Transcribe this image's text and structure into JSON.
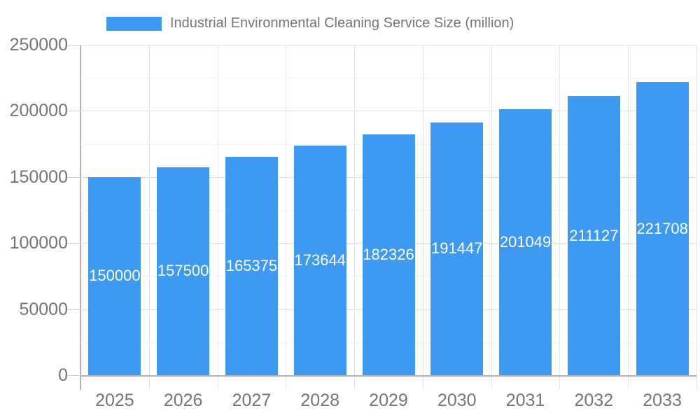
{
  "legend": {
    "label": "Industrial Environmental Cleaning Service Size (million)"
  },
  "colors": {
    "bar": "#3d9af0",
    "axis_text": "#757575",
    "bar_label_text": "#ffffff",
    "major_gridline": "#e0e0e0",
    "minor_gridline": "#f2f2f2",
    "vertical_gridline": "#e4e4e4",
    "axis_line": "#b2b2b2"
  },
  "chart_data": {
    "type": "bar",
    "title": "Industrial Environmental Cleaning Service Size (million)",
    "categories": [
      "2025",
      "2026",
      "2027",
      "2028",
      "2029",
      "2030",
      "2031",
      "2032",
      "2033"
    ],
    "values": [
      150000,
      157500,
      165375,
      173644,
      182326,
      191447,
      201049,
      211127,
      221708
    ],
    "series": [
      {
        "name": "Industrial Environmental Cleaning Service Size (million)",
        "values": [
          150000,
          157500,
          165375,
          173644,
          182326,
          191447,
          201049,
          211127,
          221708
        ]
      }
    ],
    "xlabel": "",
    "ylabel": "",
    "ylim": [
      0,
      250000
    ],
    "y_ticks": [
      0,
      50000,
      100000,
      150000,
      200000,
      250000
    ],
    "y_minor_step": 25000,
    "grid": true,
    "minor_grid": true,
    "legend_position": "top",
    "bar_value_labels": "inside-center"
  }
}
